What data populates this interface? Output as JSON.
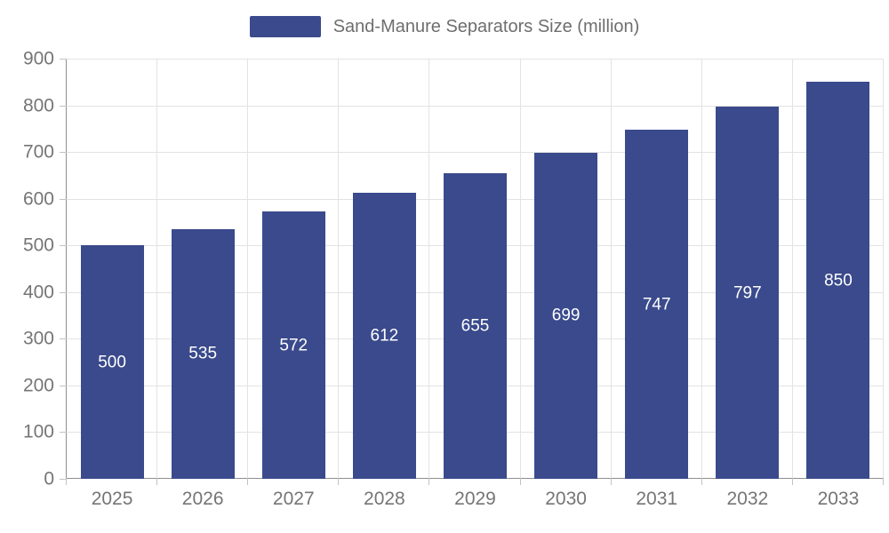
{
  "legend": {
    "label": "Sand-Manure Separators Size (million)"
  },
  "colors": {
    "bar": "#3a4a8c",
    "axis": "#8f8f8f",
    "grid": "#e3e3e3",
    "tick": "#c2c2c2",
    "tick_label": "#757575",
    "legend_text": "#6e6e6e",
    "value_label": "#ffffff"
  },
  "chart_data": {
    "type": "bar",
    "title": "Sand-Manure Separators Size (million)",
    "categories": [
      "2025",
      "2026",
      "2027",
      "2028",
      "2029",
      "2030",
      "2031",
      "2032",
      "2033"
    ],
    "values": [
      500,
      535,
      572,
      612,
      655,
      699,
      747,
      797,
      850
    ],
    "xlabel": "",
    "ylabel": "",
    "ylim": [
      0,
      900
    ],
    "ytick_step": 100,
    "grid": true,
    "legend_position": "top-center"
  }
}
